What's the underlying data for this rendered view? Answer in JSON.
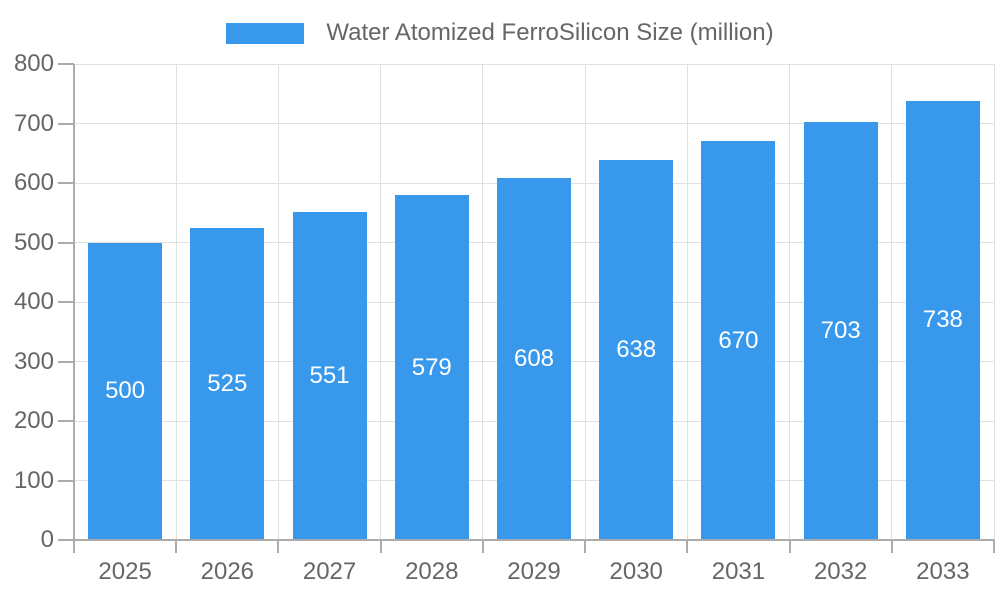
{
  "chart_data": {
    "type": "bar",
    "title": "Water Atomized FerroSilicon Size (million)",
    "legend": "Water Atomized FerroSilicon Size (million)",
    "legend_position": "top",
    "categories": [
      "2025",
      "2026",
      "2027",
      "2028",
      "2029",
      "2030",
      "2031",
      "2032",
      "2033"
    ],
    "values": [
      500,
      525,
      551,
      579,
      608,
      638,
      670,
      703,
      738
    ],
    "xlabel": "",
    "ylabel": "",
    "ylim": [
      0,
      800
    ],
    "yticks": [
      0,
      100,
      200,
      300,
      400,
      500,
      600,
      700,
      800
    ],
    "grid": true,
    "colors": {
      "bar": "#3899EC",
      "value_label": "#FFFFFF",
      "axis": "#ABABAB",
      "grid": "#E0E0E0",
      "text": "#666666"
    }
  }
}
